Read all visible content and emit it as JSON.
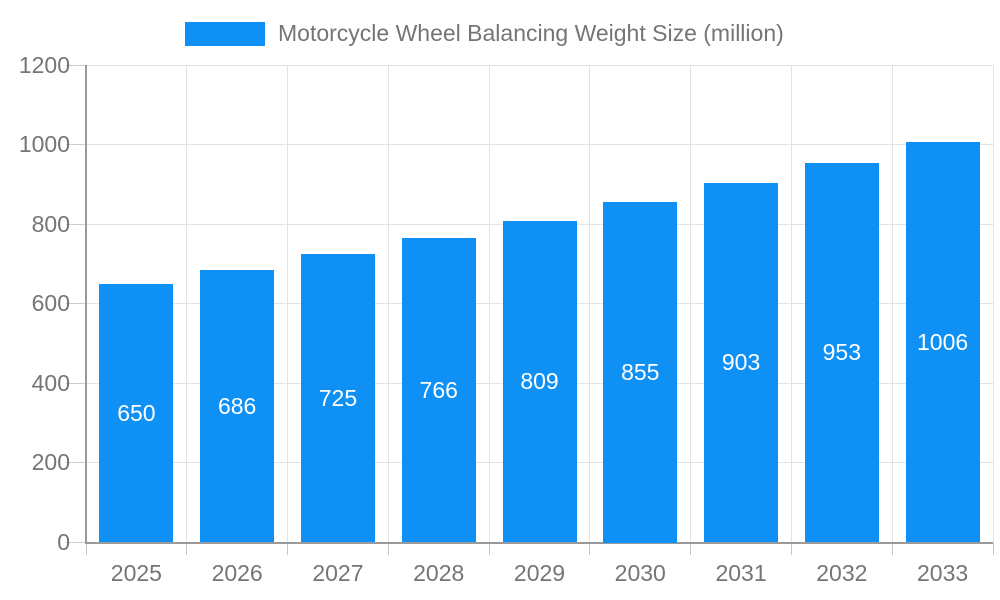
{
  "legend": {
    "label": "Motorcycle Wheel Balancing Weight Size (million)"
  },
  "chart_data": {
    "type": "bar",
    "title": "Motorcycle Wheel Balancing Weight Size (million)",
    "categories": [
      "2025",
      "2026",
      "2027",
      "2028",
      "2029",
      "2030",
      "2031",
      "2032",
      "2033"
    ],
    "values": [
      650,
      686,
      725,
      766,
      809,
      855,
      903,
      953,
      1006
    ],
    "xlabel": "",
    "ylabel": "",
    "ylim": [
      0,
      1200
    ],
    "yticks": [
      0,
      200,
      400,
      600,
      800,
      1000,
      1200
    ],
    "grid": true,
    "legend_position": "top",
    "bar_color": "#0e90f5",
    "bar_label_color": "#ffffff",
    "axis_text_color": "#757575",
    "gridline_color": "#e3e3e3"
  }
}
